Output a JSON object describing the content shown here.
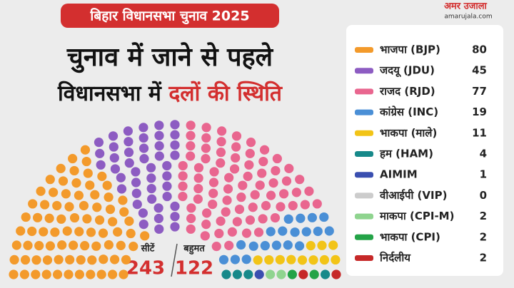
{
  "chart_data": {
    "type": "parliament",
    "badge": "बिहार विधानसभा चुनाव 2025",
    "title_line1": "चुनाव में जाने से पहले",
    "title_line2": "विधानसभा में",
    "title_line2_highlight": "दलों की स्थिति",
    "brand": "अमर उजाला",
    "brand_url": "amarujala.com",
    "total_label": "सीटें",
    "total": 243,
    "majority_label": "बहुमत",
    "majority": 122,
    "series": [
      {
        "name": "भाजपा (BJP)",
        "color": "#f39a2b",
        "values": [
          80
        ]
      },
      {
        "name": "जदयू (JDU)",
        "color": "#8d5cc2",
        "values": [
          45
        ]
      },
      {
        "name": "राजद (RJD)",
        "color": "#e9668f",
        "values": [
          77
        ]
      },
      {
        "name": "कांग्रेस (INC)",
        "color": "#4a8fd6",
        "values": [
          19
        ]
      },
      {
        "name": "भाकपा (माले)",
        "color": "#f2c417",
        "values": [
          11
        ]
      },
      {
        "name": "हम (HAM)",
        "color": "#17898a",
        "values": [
          4
        ]
      },
      {
        "name": "AIMIM",
        "color": "#3a4fb0",
        "values": [
          1
        ]
      },
      {
        "name": "वीआईपी (VIP)",
        "color": "#cccccc",
        "values": [
          0
        ]
      },
      {
        "name": "माकपा (CPI-M)",
        "color": "#8fd48f",
        "values": [
          2
        ]
      },
      {
        "name": "भाकपा (CPI)",
        "color": "#23a347",
        "values": [
          2
        ]
      },
      {
        "name": "निर्दलीय",
        "color": "#c62828",
        "values": [
          2
        ]
      }
    ]
  }
}
